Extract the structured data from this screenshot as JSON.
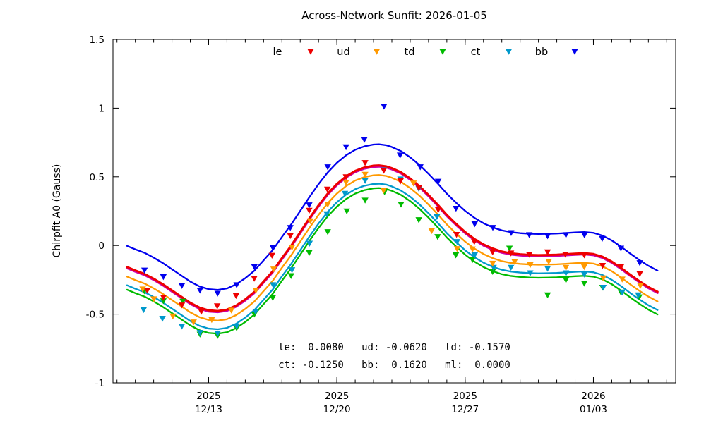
{
  "chart_data": {
    "type": "line+scatter",
    "title": "Across-Network Sunfit: 2026-01-05",
    "ylabel": "Chirpfit A0 (Gauss)",
    "xlabel": "",
    "grid": false,
    "marker_shape": "triangle-down",
    "x_axis": {
      "unit": "days since 2025-12-08",
      "range": [
        -0.22,
        30.49
      ],
      "minor_tick_step": 1,
      "minor_tick_range": [
        0,
        30
      ],
      "major_ticks": [
        {
          "d": 5,
          "year": "2025",
          "date": "12/13"
        },
        {
          "d": 12,
          "year": "2025",
          "date": "12/20"
        },
        {
          "d": 19,
          "year": "2025",
          "date": "12/27"
        },
        {
          "d": 26,
          "year": "2026",
          "date": "01/03"
        }
      ]
    },
    "y_axis": {
      "range": [
        -1,
        1.5
      ],
      "ticks": [
        -1,
        -0.5,
        0,
        0.5,
        1,
        1.5
      ],
      "tick_labels": [
        "-1",
        "-0.5",
        "0",
        "0.5",
        "1",
        "1.5"
      ]
    },
    "legend": {
      "position": "top-horizontal",
      "entries": [
        {
          "name": "le",
          "color": "#ee0000"
        },
        {
          "name": "ud",
          "color": "#ff9900"
        },
        {
          "name": "td",
          "color": "#00bb00"
        },
        {
          "name": "ct",
          "color": "#0099cc"
        },
        {
          "name": "bb",
          "color": "#0000ee"
        }
      ]
    },
    "annotation": {
      "line1": "le:  0.0080   ud: -0.0620   td: -0.1570",
      "line2": "ct: -0.1250   bb:  0.1620   ml:  0.0000"
    },
    "fit_offsets": {
      "le": 0.008,
      "ud": -0.062,
      "td": -0.157,
      "ct": -0.125,
      "bb": 0.162,
      "ml": 0.0
    },
    "base_curve": {
      "d": [
        0.55,
        1,
        1.5,
        2,
        2.5,
        3,
        3.5,
        4,
        4.5,
        5,
        5.5,
        6,
        6.5,
        7,
        7.5,
        8,
        8.5,
        9,
        9.5,
        10,
        10.5,
        11,
        11.5,
        12,
        12.5,
        13,
        13.5,
        14,
        14.3,
        14.7,
        15,
        15.5,
        16,
        16.5,
        17,
        17.5,
        18,
        18.5,
        19,
        19.5,
        20,
        20.5,
        21,
        21.5,
        22,
        22.5,
        23,
        23.5,
        24,
        24.5,
        25,
        25.5,
        26,
        26.5,
        27,
        27.5,
        28,
        28.5,
        29,
        29.5
      ],
      "v": [
        -0.165,
        -0.19,
        -0.215,
        -0.25,
        -0.29,
        -0.335,
        -0.38,
        -0.425,
        -0.46,
        -0.48,
        -0.485,
        -0.475,
        -0.445,
        -0.4,
        -0.345,
        -0.27,
        -0.195,
        -0.1,
        -0.01,
        0.09,
        0.19,
        0.285,
        0.37,
        0.44,
        0.495,
        0.535,
        0.56,
        0.573,
        0.575,
        0.568,
        0.555,
        0.525,
        0.48,
        0.425,
        0.36,
        0.29,
        0.215,
        0.15,
        0.09,
        0.04,
        0.0,
        -0.03,
        -0.052,
        -0.065,
        -0.072,
        -0.076,
        -0.078,
        -0.077,
        -0.075,
        -0.071,
        -0.067,
        -0.064,
        -0.07,
        -0.09,
        -0.125,
        -0.17,
        -0.22,
        -0.267,
        -0.31,
        -0.345
      ]
    },
    "series": [
      {
        "name": "bb",
        "color": "#0000ee",
        "offset": 0.162,
        "line_width": 2.3,
        "points": [
          [
            1.5,
            -0.18
          ],
          [
            2.53,
            -0.228
          ],
          [
            3.54,
            -0.292
          ],
          [
            4.53,
            -0.326
          ],
          [
            5.49,
            -0.348
          ],
          [
            6.53,
            -0.286
          ],
          [
            7.5,
            -0.155
          ],
          [
            8.5,
            -0.014
          ],
          [
            9.46,
            0.13
          ],
          [
            10.49,
            0.295
          ],
          [
            11.5,
            0.572
          ],
          [
            12.5,
            0.718
          ],
          [
            13.5,
            0.772
          ],
          [
            14.57,
            1.014
          ],
          [
            15.45,
            0.658
          ],
          [
            16.55,
            0.572
          ],
          [
            17.53,
            0.467
          ],
          [
            18.5,
            0.27
          ],
          [
            19.52,
            0.157
          ],
          [
            20.51,
            0.131
          ],
          [
            21.51,
            0.093
          ],
          [
            22.5,
            0.078
          ],
          [
            23.5,
            0.07
          ],
          [
            24.5,
            0.078
          ],
          [
            25.51,
            0.077
          ],
          [
            26.48,
            0.051
          ],
          [
            27.5,
            -0.02
          ],
          [
            28.53,
            -0.126
          ]
        ]
      },
      {
        "name": "td",
        "color": "#00bb00",
        "offset": -0.157,
        "line_width": 2.3,
        "points": [
          [
            1.49,
            -0.331
          ],
          [
            2.53,
            -0.403
          ],
          [
            3.59,
            -0.406
          ],
          [
            4.53,
            -0.646
          ],
          [
            5.49,
            -0.656
          ],
          [
            6.53,
            -0.6
          ],
          [
            7.5,
            -0.5
          ],
          [
            8.5,
            -0.38
          ],
          [
            9.5,
            -0.22
          ],
          [
            10.49,
            -0.052
          ],
          [
            11.5,
            0.1
          ],
          [
            12.54,
            0.251
          ],
          [
            13.54,
            0.33
          ],
          [
            14.6,
            0.39
          ],
          [
            15.5,
            0.3
          ],
          [
            16.47,
            0.187
          ],
          [
            17.5,
            0.064
          ],
          [
            18.49,
            -0.069
          ],
          [
            19.4,
            -0.103
          ],
          [
            20.5,
            -0.19
          ],
          [
            21.42,
            -0.02
          ],
          [
            22.55,
            -0.138
          ],
          [
            23.5,
            -0.36
          ],
          [
            24.5,
            -0.25
          ],
          [
            25.5,
            -0.275
          ],
          [
            26.5,
            -0.305
          ],
          [
            27.5,
            -0.34
          ],
          [
            28.5,
            -0.375
          ]
        ]
      },
      {
        "name": "ct",
        "color": "#0099cc",
        "offset": -0.125,
        "line_width": 2.3,
        "points": [
          [
            1.45,
            -0.468
          ],
          [
            2.48,
            -0.531
          ],
          [
            3.54,
            -0.588
          ],
          [
            4.53,
            -0.634
          ],
          [
            5.49,
            -0.639
          ],
          [
            6.53,
            -0.588
          ],
          [
            7.56,
            -0.48
          ],
          [
            8.52,
            -0.286
          ],
          [
            9.55,
            -0.177
          ],
          [
            10.51,
            0.016
          ],
          [
            11.45,
            0.23
          ],
          [
            12.44,
            0.379
          ],
          [
            13.54,
            0.473
          ],
          [
            14.56,
            0.55
          ],
          [
            15.47,
            0.484
          ],
          [
            16.47,
            0.415
          ],
          [
            17.46,
            0.21
          ],
          [
            18.56,
            0.028
          ],
          [
            19.52,
            -0.069
          ],
          [
            20.55,
            -0.16
          ],
          [
            21.5,
            -0.16
          ],
          [
            22.55,
            -0.2
          ],
          [
            23.5,
            -0.167
          ],
          [
            24.5,
            -0.2
          ],
          [
            25.5,
            -0.21
          ],
          [
            26.54,
            -0.305
          ],
          [
            27.57,
            -0.34
          ],
          [
            28.45,
            -0.36
          ]
        ]
      },
      {
        "name": "ud",
        "color": "#ff9900",
        "offset": -0.062,
        "line_width": 2.3,
        "points": [
          [
            1.4,
            -0.317
          ],
          [
            2.01,
            -0.389
          ],
          [
            3.05,
            -0.514
          ],
          [
            4.18,
            -0.557
          ],
          [
            5.17,
            -0.54
          ],
          [
            6.24,
            -0.471
          ],
          [
            7.58,
            -0.326
          ],
          [
            8.55,
            -0.172
          ],
          [
            9.55,
            -0.013
          ],
          [
            10.55,
            0.179
          ],
          [
            11.5,
            0.3
          ],
          [
            12.5,
            0.46
          ],
          [
            13.54,
            0.518
          ],
          [
            14.55,
            0.401
          ],
          [
            16.18,
            0.454
          ],
          [
            17.17,
            0.107
          ],
          [
            18.56,
            -0.023
          ],
          [
            19.4,
            -0.026
          ],
          [
            20.5,
            -0.13
          ],
          [
            21.7,
            -0.117
          ],
          [
            22.55,
            -0.14
          ],
          [
            23.56,
            -0.116
          ],
          [
            24.5,
            -0.16
          ],
          [
            25.5,
            -0.155
          ],
          [
            26.54,
            -0.237
          ],
          [
            27.57,
            -0.245
          ],
          [
            28.56,
            -0.292
          ]
        ]
      },
      {
        "name": "ml",
        "color": "#cc00aa",
        "offset": 0.0,
        "line_width": 3.0,
        "points": []
      },
      {
        "name": "le",
        "color": "#ee0000",
        "offset": 0.008,
        "line_width": 3.0,
        "points": [
          [
            1.65,
            -0.326
          ],
          [
            2.53,
            -0.377
          ],
          [
            3.54,
            -0.434
          ],
          [
            4.6,
            -0.48
          ],
          [
            5.47,
            -0.44
          ],
          [
            6.5,
            -0.365
          ],
          [
            7.49,
            -0.24
          ],
          [
            8.46,
            -0.072
          ],
          [
            9.46,
            0.071
          ],
          [
            10.49,
            0.256
          ],
          [
            11.48,
            0.41
          ],
          [
            12.5,
            0.5
          ],
          [
            13.54,
            0.603
          ],
          [
            14.56,
            0.547
          ],
          [
            15.47,
            0.47
          ],
          [
            16.47,
            0.42
          ],
          [
            17.53,
            0.261
          ],
          [
            18.53,
            0.08
          ],
          [
            19.5,
            0.028
          ],
          [
            20.5,
            -0.047
          ],
          [
            21.5,
            -0.055
          ],
          [
            22.5,
            -0.065
          ],
          [
            23.5,
            -0.047
          ],
          [
            24.47,
            -0.064
          ],
          [
            25.5,
            -0.069
          ],
          [
            26.5,
            -0.146
          ],
          [
            27.5,
            -0.155
          ],
          [
            28.53,
            -0.206
          ]
        ]
      }
    ]
  }
}
